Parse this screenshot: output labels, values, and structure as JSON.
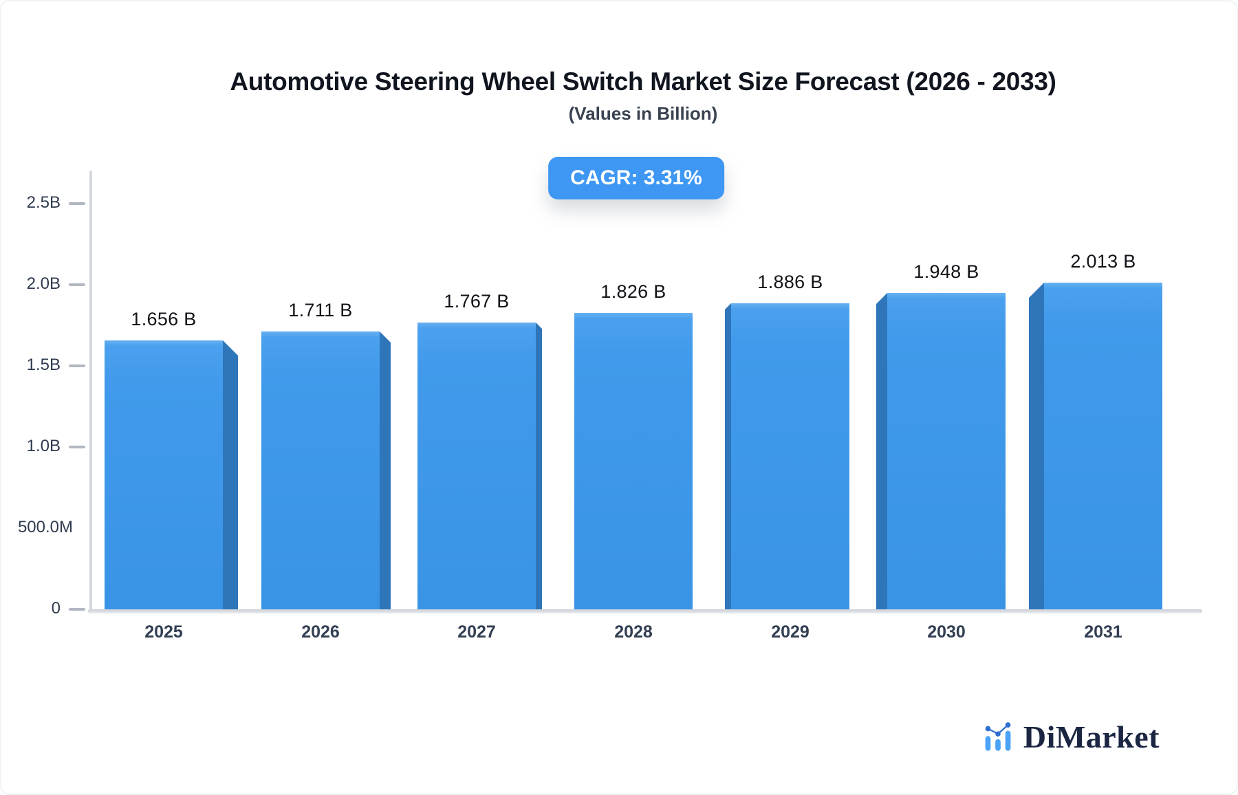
{
  "chart_data": {
    "type": "bar",
    "title": "Automotive Steering Wheel Switch Market Size Forecast (2026 - 2033)",
    "subtitle": "(Values in Billion)",
    "cagr_badge": "CAGR: 3.31%",
    "categories": [
      "2025",
      "2026",
      "2027",
      "2028",
      "2029",
      "2030",
      "2031"
    ],
    "values": [
      1.656,
      1.711,
      1.767,
      1.826,
      1.886,
      1.948,
      2.013
    ],
    "value_labels": [
      "1.656 B",
      "1.711 B",
      "1.767 B",
      "1.826 B",
      "1.886 B",
      "1.948 B",
      "2.013 B"
    ],
    "unit": "Billion",
    "ylim": [
      0,
      2.5
    ],
    "y_ticks": [
      {
        "label": "2.5B",
        "value": 2.5,
        "dash": true
      },
      {
        "label": "2.0B",
        "value": 2.0,
        "dash": true
      },
      {
        "label": "1.5B",
        "value": 1.5,
        "dash": true
      },
      {
        "label": "1.0B",
        "value": 1.0,
        "dash": true
      },
      {
        "label": "500.0M",
        "value": 0.5,
        "dash": false
      },
      {
        "label": "0",
        "value": 0,
        "dash": true
      }
    ],
    "grid": false,
    "legend": false,
    "style": {
      "bar_face_color": "#419AEB",
      "bar_face_top_color": "#67B0F2",
      "bar_side_color": "#2E75B9",
      "badge_bg_color": "#3D97F3",
      "badge_text_color": "#FFFFFF",
      "axis_color": "#D4D8DE",
      "tick_dash_color": "#B2B8C1",
      "axis_label_color": "#2F3A50",
      "value_label_color": "#121218",
      "title_color": "#10151F",
      "effect": "3d-perspective"
    }
  },
  "watermark": {
    "brand": "DiMarket",
    "logo_icon": "bar-chart-with-dots-icon",
    "logo_bar_color": "#4AA3F7",
    "logo_dot_color": "#2F6FD0",
    "text_color": "#1B2642"
  }
}
